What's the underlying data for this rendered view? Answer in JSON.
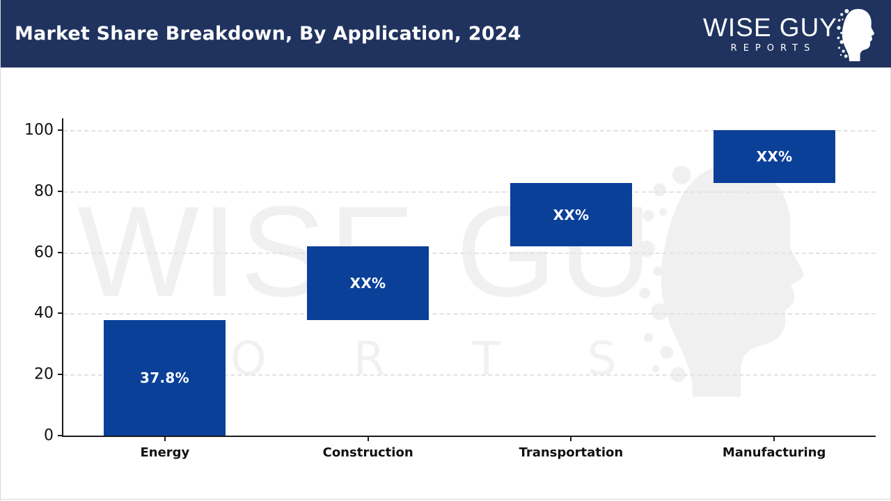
{
  "header": {
    "title": "Market Share Breakdown, By Application, 2024",
    "logo": {
      "line1": "WISE GUY",
      "line2": "REPORTS"
    }
  },
  "watermark": {
    "line1": "WISE GU",
    "line2": "P O R T S"
  },
  "colors": {
    "header_bg": "#20335f",
    "bar_blue": "#0b4099",
    "gridline": "#e2e2e2",
    "watermark": "#f0f0f0",
    "axis": "#1a1a1a",
    "bar_label_text": "#ffffff"
  },
  "chart_data": {
    "type": "bar",
    "subtype": "waterfall",
    "title": "Market Share Breakdown, By Application, 2024",
    "categories": [
      "Energy",
      "Construction",
      "Transportation",
      "Manufacturing"
    ],
    "segments": [
      {
        "category": "Energy",
        "start": 0,
        "end": 37.8,
        "label": "37.8%"
      },
      {
        "category": "Construction",
        "start": 37.8,
        "end": 62,
        "label": "XX%"
      },
      {
        "category": "Transportation",
        "start": 62,
        "end": 82.8,
        "label": "XX%"
      },
      {
        "category": "Manufacturing",
        "start": 82.8,
        "end": 100,
        "label": "XX%"
      }
    ],
    "xlabel": "",
    "ylabel": "",
    "yticks": [
      0,
      20,
      40,
      60,
      80,
      100
    ],
    "ylim": [
      0,
      104
    ],
    "grid": "horizontal-dashed",
    "legend": "none",
    "bar_color": "#0b4099"
  }
}
